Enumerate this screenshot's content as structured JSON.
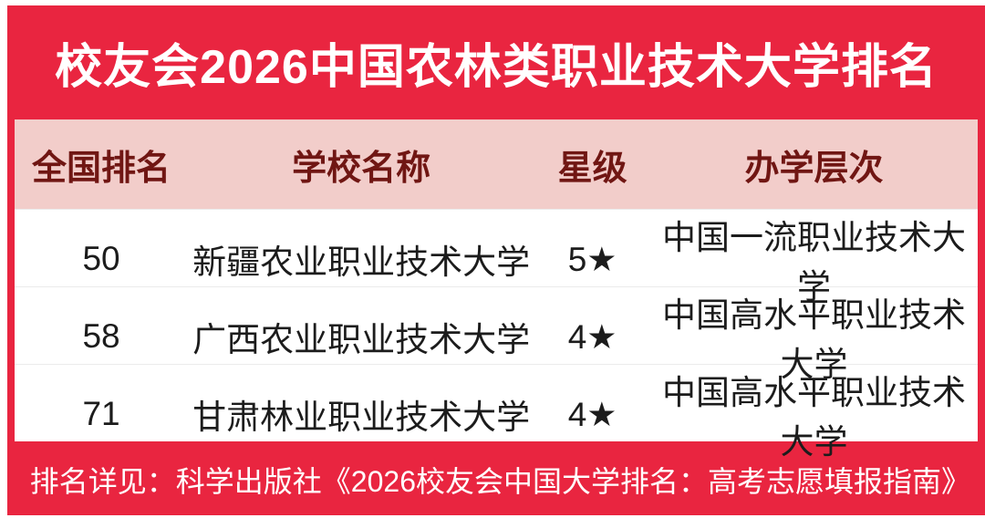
{
  "chart_data": {
    "type": "table",
    "title": "校友会2026中国农林类职业技术大学排名",
    "columns": [
      "全国排名",
      "学校名称",
      "星级",
      "办学层次"
    ],
    "rows": [
      [
        "50",
        "新疆农业职业技术大学",
        "5★",
        "中国一流职业技术大学"
      ],
      [
        "58",
        "广西农业职业技术大学",
        "4★",
        "中国高水平职业技术大学"
      ],
      [
        "71",
        "甘肃林业职业技术大学",
        "4★",
        "中国高水平职业技术大学"
      ]
    ],
    "footnote": "排名详见：科学出版社《2026校友会中国大学排名：高考志愿填报指南》",
    "layout": {
      "legend": "none",
      "grid": "row-separators-only"
    }
  },
  "colors": {
    "background_red": "#e92540",
    "header_pink": "#f2cdca",
    "header_text_maroon": "#701613",
    "title_text_white": "#ffffff",
    "row_text_black": "#1c1c1c",
    "row_separator_gray": "#ebebeb"
  }
}
